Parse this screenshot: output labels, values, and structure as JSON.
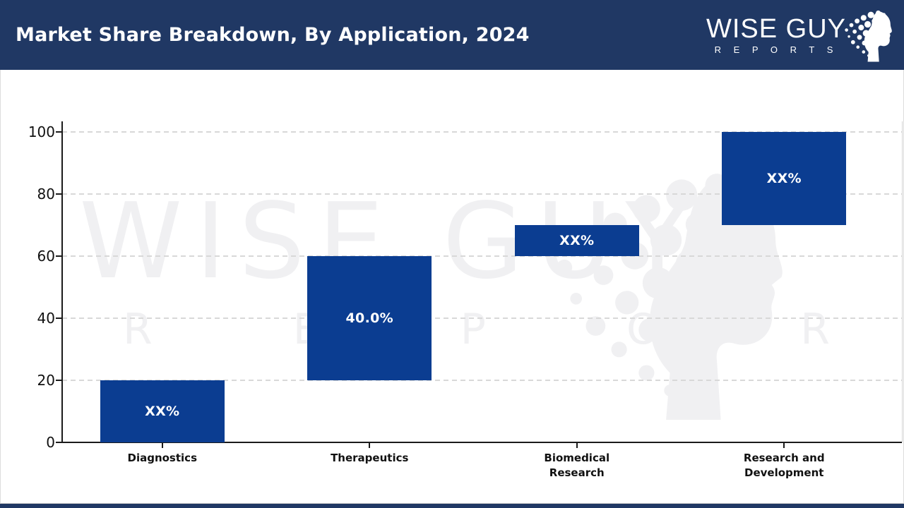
{
  "header": {
    "title": "Market Share Breakdown, By Application, 2024",
    "logo": {
      "name": "Wise Guy Reports",
      "line1": "WISE GUY",
      "line2": "R E P O R T S"
    }
  },
  "watermark": {
    "line1": "WISE GUY",
    "line2": "R E P O R T S"
  },
  "chart_data": {
    "type": "bar",
    "subtype": "waterfall",
    "title": "Market Share Breakdown, By Application, 2024",
    "categories": [
      "Diagnostics",
      "Therapeutics",
      "Biomedical Research",
      "Research and Development"
    ],
    "category_label_lines": [
      [
        "Diagnostics"
      ],
      [
        "Therapeutics"
      ],
      [
        "Biomedical",
        "Research"
      ],
      [
        "Research and",
        "Development"
      ]
    ],
    "series": [
      {
        "name": "Market share (%)",
        "segments": [
          {
            "category": "Diagnostics",
            "start": 0,
            "end": 20,
            "label": "XX%"
          },
          {
            "category": "Therapeutics",
            "start": 20,
            "end": 60,
            "label": "40.0%"
          },
          {
            "category": "Biomedical Research",
            "start": 60,
            "end": 70,
            "label": "XX%"
          },
          {
            "category": "Research and Development",
            "start": 70,
            "end": 100,
            "label": "XX%"
          }
        ]
      }
    ],
    "xlabel": "",
    "ylabel": "",
    "ylim": [
      0,
      100
    ],
    "yticks": [
      0,
      20,
      40,
      60,
      80,
      100
    ],
    "grid": "horizontal-dashed",
    "legend_position": "none",
    "colors": {
      "bar": "#0b3d91",
      "bar_label": "#ffffff",
      "header_bg": "#203864",
      "footer_bg": "#203864",
      "grid_line": "#d8d8d8",
      "axis": "#1a1a1a",
      "watermark": "#f0f0f2"
    }
  }
}
